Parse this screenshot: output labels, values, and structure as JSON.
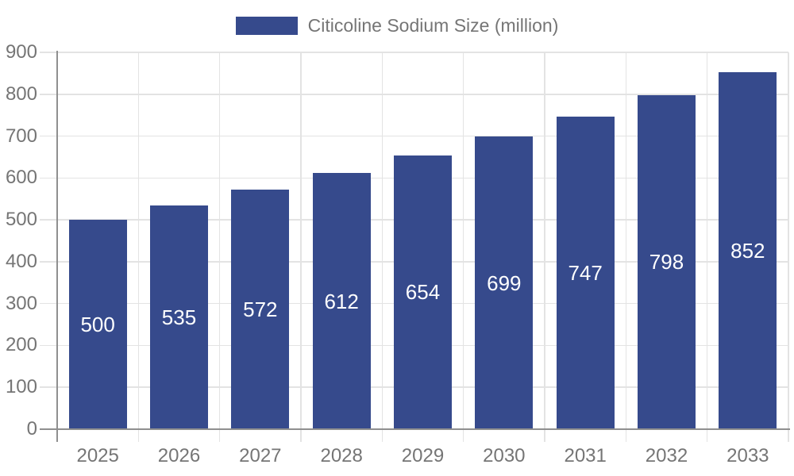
{
  "legend": {
    "label": "Citicoline Sodium Size (million)"
  },
  "colors": {
    "bar": "#364a8c",
    "axis_text": "#757575",
    "value_label": "#ffffff",
    "grid": "#e3e3e3",
    "axis_line": "#8f8f8f",
    "background": "#ffffff"
  },
  "chart_data": {
    "type": "bar",
    "title": "",
    "series_name": "Citicoline Sodium Size (million)",
    "categories": [
      "2025",
      "2026",
      "2027",
      "2028",
      "2029",
      "2030",
      "2031",
      "2032",
      "2033"
    ],
    "values": [
      500,
      535,
      572,
      612,
      654,
      699,
      747,
      798,
      852
    ],
    "value_labels_shown": true,
    "xlabel": "",
    "ylabel": "",
    "ylim": [
      0,
      900
    ],
    "yticks": [
      0,
      100,
      200,
      300,
      400,
      500,
      600,
      700,
      800,
      900
    ],
    "grid": true,
    "legend_position": "top"
  }
}
